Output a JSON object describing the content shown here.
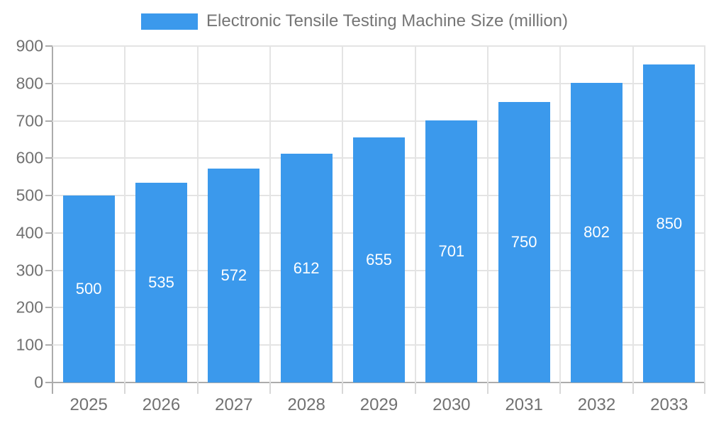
{
  "legend": {
    "label": "Electronic Tensile Testing Machine Size (million)"
  },
  "colors": {
    "bar": "#3b99ec",
    "grid": "#e4e4e4",
    "axis": "#acacac",
    "x_tick": "#d8d8d8",
    "tick_text": "#717171",
    "legend_text": "#757575",
    "bar_label": "#ffffff",
    "background": "#ffffff"
  },
  "chart_data": {
    "type": "bar",
    "title": "Electronic Tensile Testing Machine Size (million)",
    "categories": [
      "2025",
      "2026",
      "2027",
      "2028",
      "2029",
      "2030",
      "2031",
      "2032",
      "2033"
    ],
    "values": [
      500,
      535,
      572,
      612,
      655,
      701,
      750,
      802,
      850
    ],
    "xlabel": "",
    "ylabel": "",
    "ylim": [
      0,
      900
    ],
    "ytick_step": 100,
    "ytick_labels": [
      "0",
      "100",
      "200",
      "300",
      "400",
      "500",
      "600",
      "700",
      "800",
      "900"
    ],
    "grid": true,
    "legend_position": "top-center",
    "value_labels": "inside-center"
  }
}
